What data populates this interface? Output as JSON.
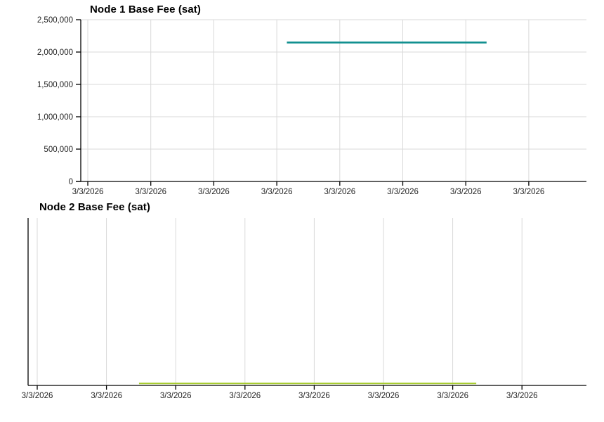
{
  "page": {
    "background": "#ffffff"
  },
  "colors": {
    "grid": "#d9d9d9",
    "axis": "#000000",
    "tick_text": "#1f1f1f",
    "title_text": "#000000",
    "node1_line": "#108f8f",
    "node2_line": "#a8cd32"
  },
  "chart_data": [
    {
      "type": "line",
      "title": "Node 1 Base Fee (sat)",
      "xlabel": "",
      "ylabel": "",
      "x_tick_labels": [
        "3/3/2026",
        "3/3/2026",
        "3/3/2026",
        "3/3/2026",
        "3/3/2026",
        "3/3/2026",
        "3/3/2026",
        "3/3/2026"
      ],
      "y_axis": {
        "tick_values": [
          0,
          500000,
          1000000,
          1500000,
          2000000,
          2500000
        ],
        "tick_labels": [
          "0",
          "500,000",
          "1,000,000",
          "1,500,000",
          "2,000,000",
          "2,500,000"
        ],
        "range": [
          0,
          2500000
        ]
      },
      "grid": {
        "horizontal": true,
        "vertical": true
      },
      "legend_position": "none",
      "series": [
        {
          "name": "Node 1 Base Fee",
          "color": "#108f8f",
          "x_unit": "x-axis tick index (0 = first 3/3/2026 tick)",
          "points": [
            {
              "x": 3.16,
              "y": 2147000
            },
            {
              "x": 6.33,
              "y": 2147000
            }
          ]
        }
      ]
    },
    {
      "type": "line",
      "title": "Node 2 Base Fee (sat)",
      "xlabel": "",
      "ylabel": "",
      "x_tick_labels": [
        "3/3/2026",
        "3/3/2026",
        "3/3/2026",
        "3/3/2026",
        "3/3/2026",
        "3/3/2026",
        "3/3/2026",
        "3/3/2026"
      ],
      "y_axis": {
        "tick_values": [],
        "tick_labels": [],
        "range": [
          0,
          1
        ],
        "unlabeled": true
      },
      "grid": {
        "horizontal": false,
        "vertical": true
      },
      "legend_position": "none",
      "series": [
        {
          "name": "Node 2 Base Fee",
          "color": "#a8cd32",
          "x_unit": "x-axis tick index (0 = first 3/3/2026 tick)",
          "points": [
            {
              "x": 1.47,
              "y": 0.012
            },
            {
              "x": 6.34,
              "y": 0.012
            }
          ]
        }
      ]
    }
  ]
}
